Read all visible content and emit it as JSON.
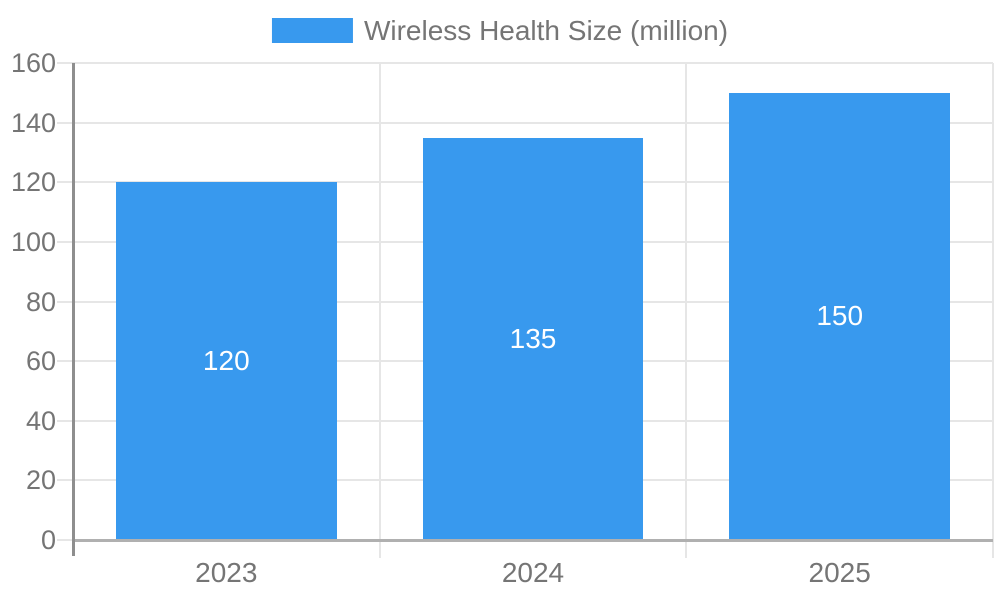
{
  "chart_data": {
    "type": "bar",
    "title": "Wireless Health Size (million)",
    "categories": [
      "2023",
      "2024",
      "2025"
    ],
    "values": [
      120,
      135,
      150
    ],
    "bar_labels": [
      "120",
      "135",
      "150"
    ],
    "xlabel": "",
    "ylabel": "",
    "ylim": [
      0,
      160
    ],
    "ytick_step": 20,
    "ytick_labels": [
      "0",
      "20",
      "40",
      "60",
      "80",
      "100",
      "120",
      "140",
      "160"
    ],
    "grid": true,
    "legend_position": "top-center",
    "colors": {
      "bar": "#3899EE",
      "grid": "#e6e6e6",
      "y_axis_line": "#8e8e8e",
      "x_axis_line": "#b0b0b0",
      "axis_text": "#757575",
      "bar_label_text": "#ffffff",
      "background": "#ffffff"
    }
  }
}
